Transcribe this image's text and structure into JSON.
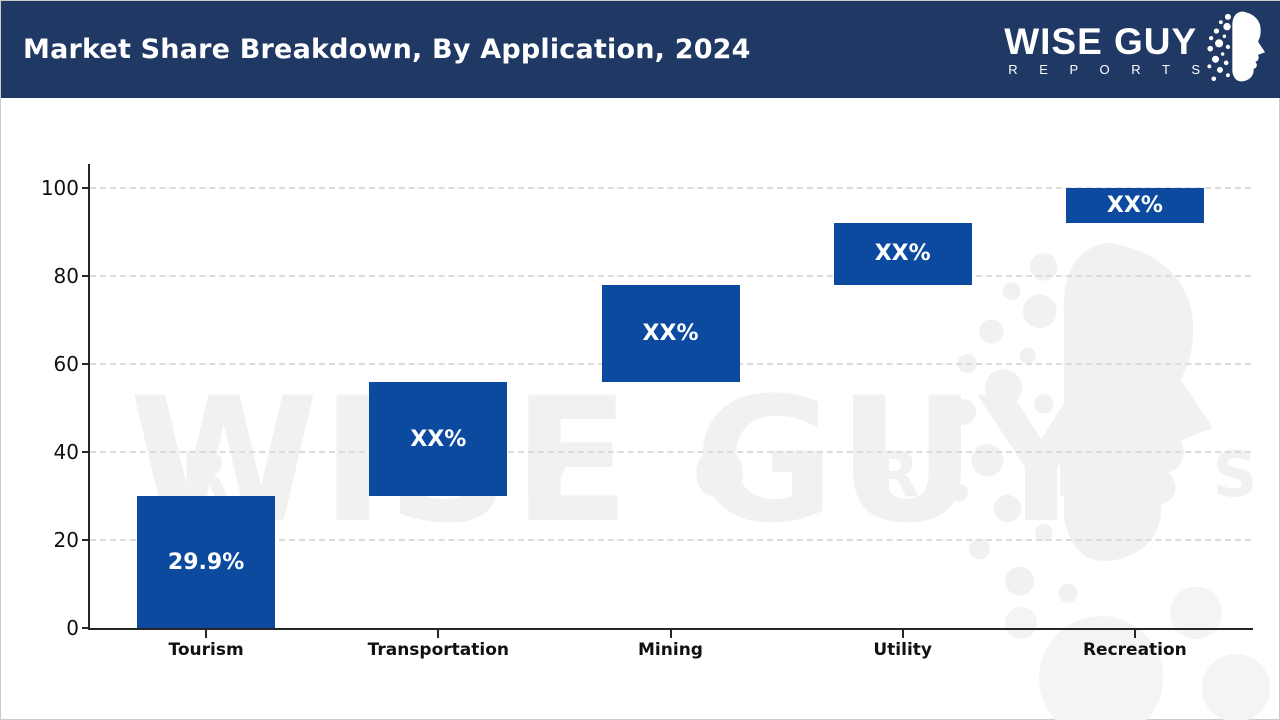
{
  "header": {
    "title": "Market Share Breakdown, By Application, 2024",
    "bg_color": "#1f3864",
    "logo": {
      "line1": "WISE GUY",
      "line2": "R E P O R T S"
    }
  },
  "watermark": {
    "line1": "WISE GUY",
    "line2": "R E P O R T S",
    "color": "#f1f1f1"
  },
  "chart_data": {
    "type": "bar",
    "subtype": "waterfall",
    "title": "Market Share Breakdown, By Application, 2024",
    "categories": [
      "Tourism",
      "Transportation",
      "Mining",
      "Utility",
      "Recreation"
    ],
    "segments": [
      {
        "category": "Tourism",
        "start": 0,
        "end": 29.9,
        "label": "29.9%"
      },
      {
        "category": "Transportation",
        "start": 29.9,
        "end": 56,
        "label": "XX%"
      },
      {
        "category": "Mining",
        "start": 56,
        "end": 78,
        "label": "XX%"
      },
      {
        "category": "Utility",
        "start": 78,
        "end": 92,
        "label": "XX%"
      },
      {
        "category": "Recreation",
        "start": 92,
        "end": 100,
        "label": "XX%"
      }
    ],
    "ylim": [
      0,
      100
    ],
    "yticks": [
      0,
      20,
      40,
      60,
      80,
      100
    ],
    "xlabel": "",
    "ylabel": "",
    "grid": "horizontal-dashed",
    "legend": "none",
    "bar_color": "#0b4a9e",
    "bar_label_color": "#ffffff",
    "axis_color": "#262626"
  }
}
